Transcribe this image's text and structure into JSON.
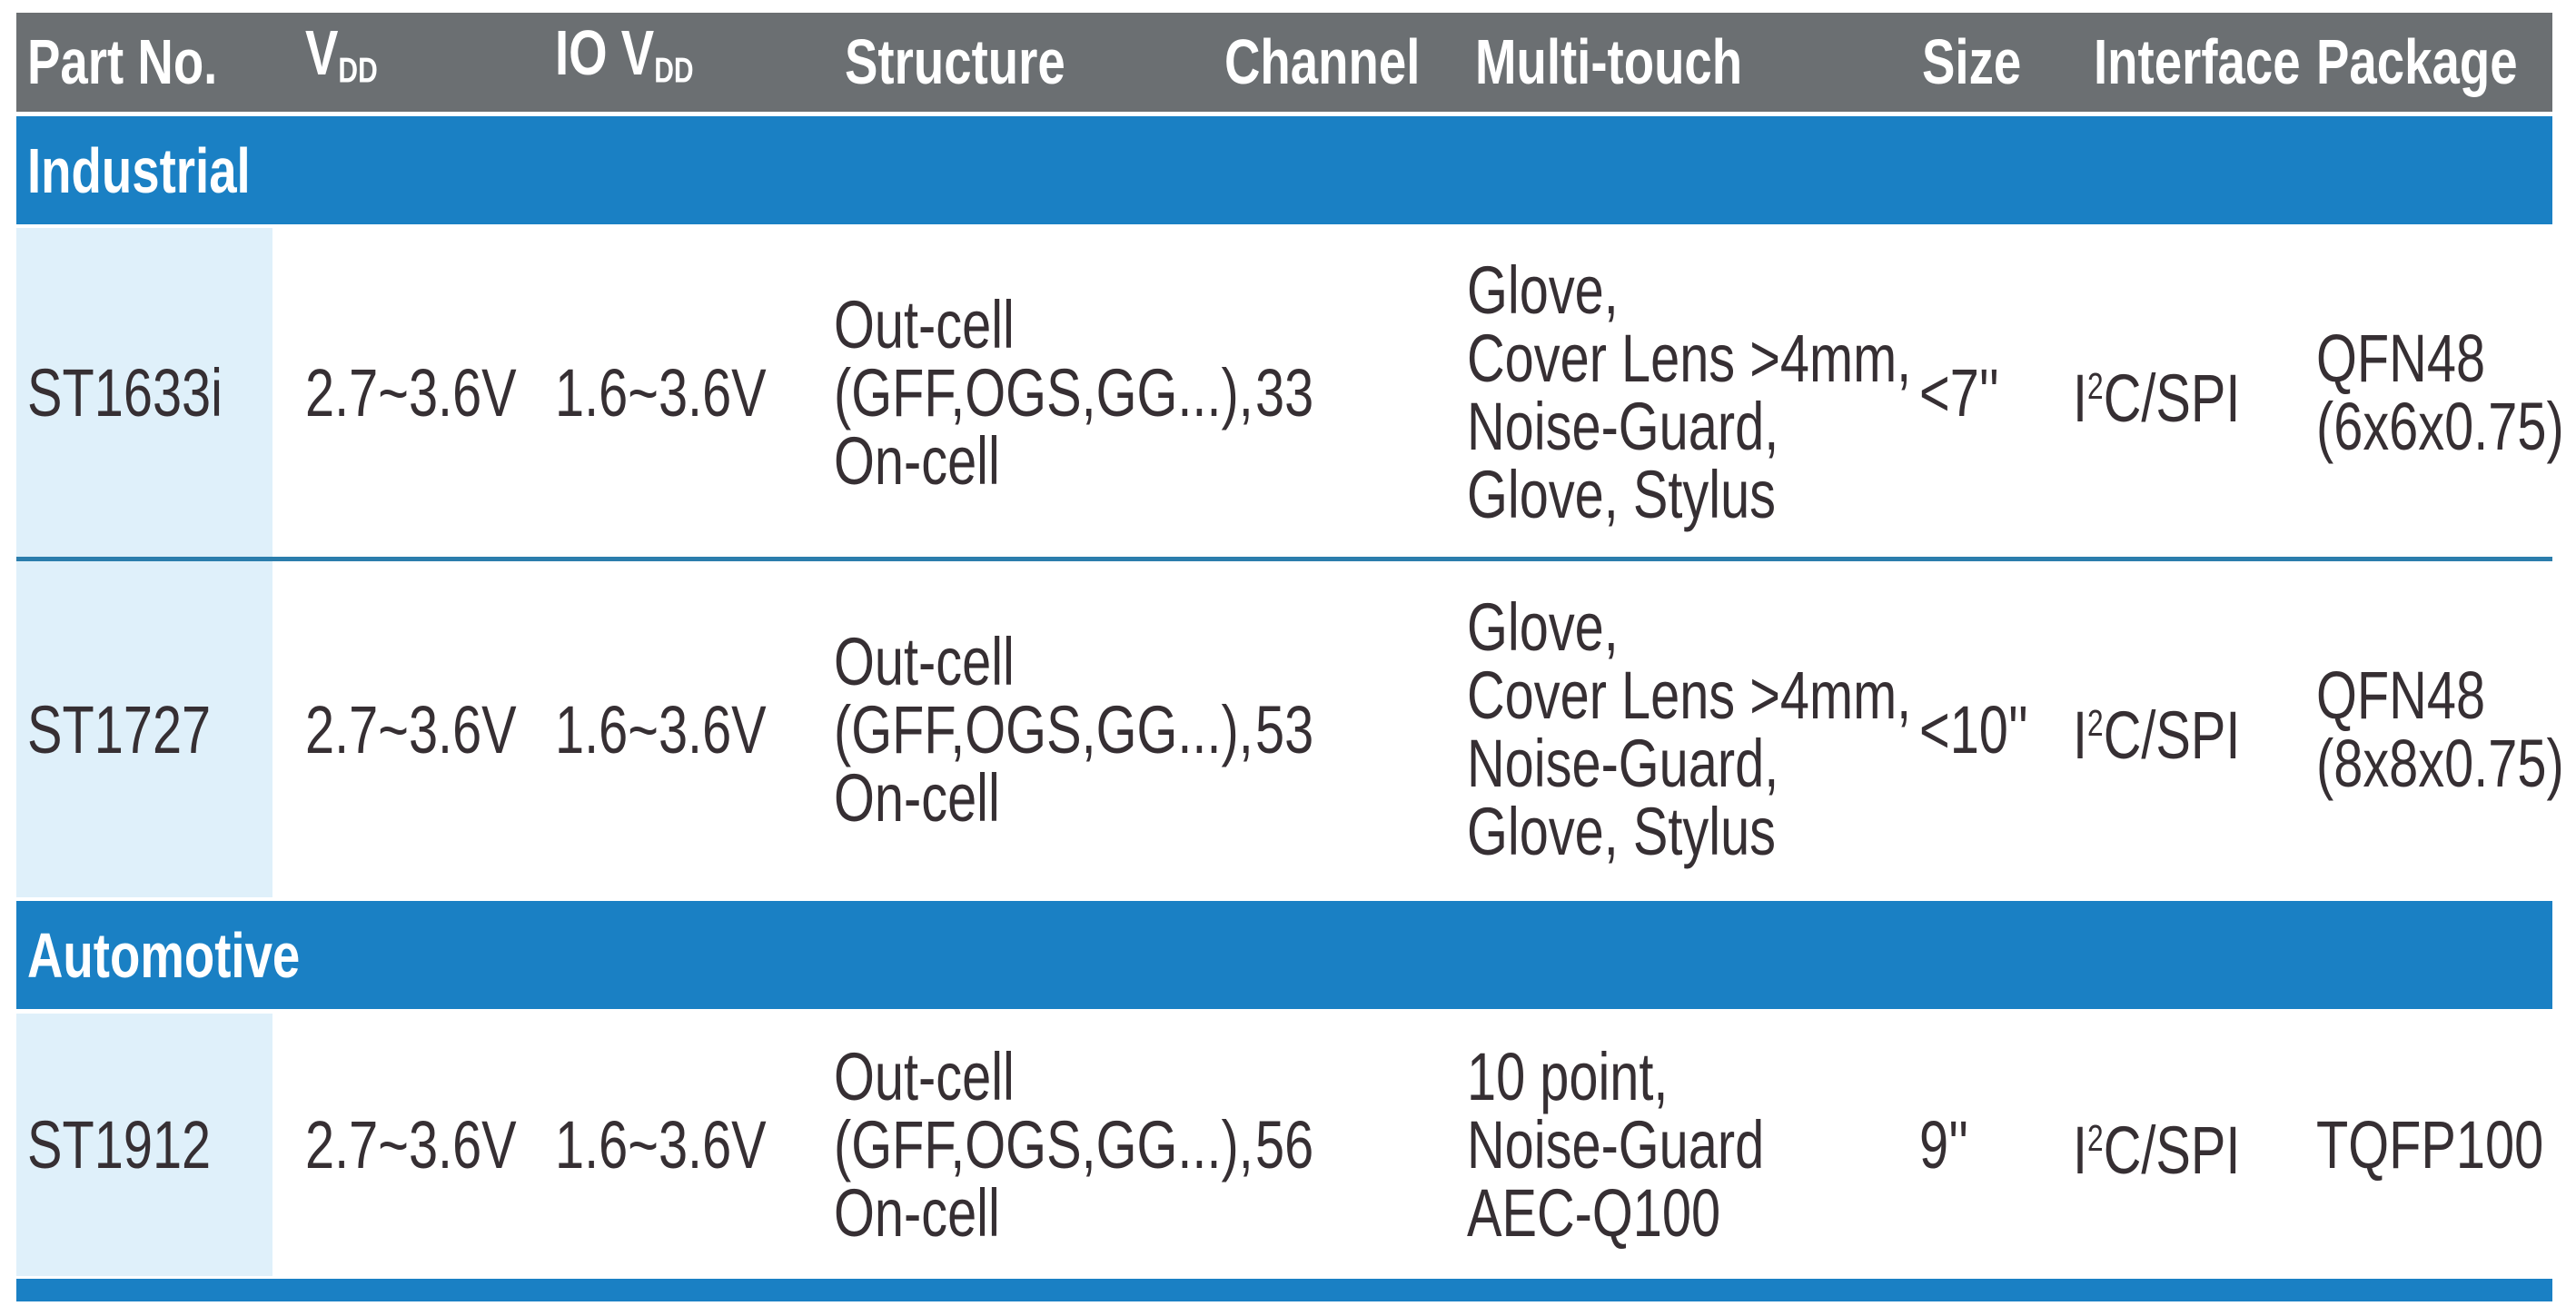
{
  "colors": {
    "header_bg": "#6b6f72",
    "header_text": "#ffffff",
    "section_bg": "#1a80c4",
    "part_column_bg": "#dff0fa",
    "row_divider": "#2b7dac",
    "bottom_bar": "#1a80c4",
    "body_text": "#362f33"
  },
  "header": {
    "part_no": "Part No.",
    "vdd_base": "V",
    "vdd_sub": "DD",
    "io_vdd_base": "IO V",
    "io_vdd_sub": "DD",
    "structure": "Structure",
    "channel": "Channel",
    "multi_touch": "Multi-touch",
    "size": "Size",
    "interface": "Interface",
    "package": "Package"
  },
  "sections": [
    {
      "title": "Industrial",
      "rows": [
        {
          "part_no": "ST1633i",
          "vdd": "2.7~3.6V",
          "io_vdd": "1.6~3.6V",
          "structure_l1": "Out-cell",
          "structure_l2": "(GFF,OGS,GG...),",
          "structure_l3": "On-cell",
          "channel": "33",
          "mt_l1": "Glove,",
          "mt_l2": "Cover Lens >4mm,",
          "mt_l3": "Noise-Guard,",
          "mt_l4": "Glove, Stylus",
          "size": "<7''",
          "if_base": "I",
          "if_sup": "2",
          "if_rest": "C/SPI",
          "pkg_l1": "QFN48",
          "pkg_l2": "(6x6x0.75)"
        },
        {
          "part_no": "ST1727",
          "vdd": "2.7~3.6V",
          "io_vdd": "1.6~3.6V",
          "structure_l1": "Out-cell",
          "structure_l2": "(GFF,OGS,GG...),",
          "structure_l3": "On-cell",
          "channel": "53",
          "mt_l1": "Glove,",
          "mt_l2": "Cover Lens >4mm,",
          "mt_l3": "Noise-Guard,",
          "mt_l4": "Glove, Stylus",
          "size": "<10''",
          "if_base": "I",
          "if_sup": "2",
          "if_rest": "C/SPI",
          "pkg_l1": "QFN48",
          "pkg_l2": "(8x8x0.75)"
        }
      ]
    },
    {
      "title": "Automotive",
      "rows": [
        {
          "part_no": "ST1912",
          "vdd": "2.7~3.6V",
          "io_vdd": "1.6~3.6V",
          "structure_l1": "Out-cell",
          "structure_l2": "(GFF,OGS,GG...),",
          "structure_l3": "On-cell",
          "channel": "56",
          "mt_l1": "10 point,",
          "mt_l2": "Noise-Guard",
          "mt_l3": "AEC-Q100",
          "size": "9''",
          "if_base": "I",
          "if_sup": "2",
          "if_rest": "C/SPI",
          "pkg_l1": "TQFP100"
        }
      ]
    }
  ]
}
